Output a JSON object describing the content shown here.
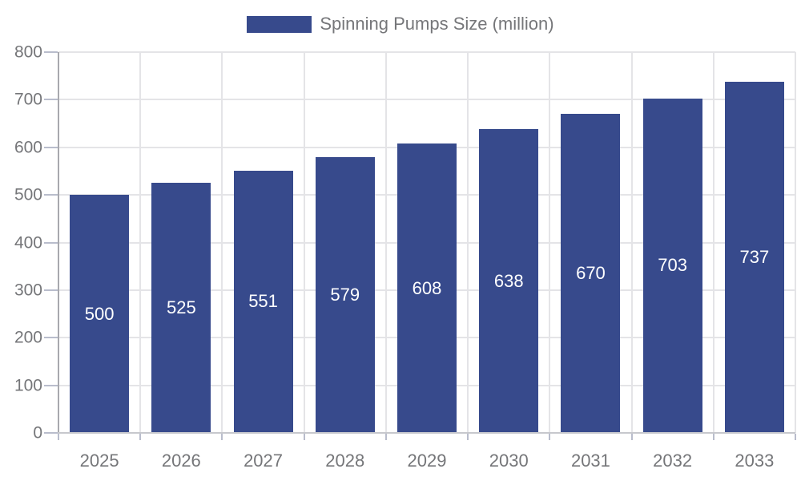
{
  "chart_data": {
    "type": "bar",
    "title": "Spinning Pumps Size (million)",
    "legend": [
      "Spinning Pumps Size (million)"
    ],
    "legend_position": "top-center",
    "categories": [
      "2025",
      "2026",
      "2027",
      "2028",
      "2029",
      "2030",
      "2031",
      "2032",
      "2033"
    ],
    "values": [
      500,
      525,
      551,
      579,
      608,
      638,
      670,
      703,
      737
    ],
    "xlabel": "",
    "ylabel": "",
    "ylim": [
      0,
      800
    ],
    "yticks": [
      0,
      100,
      200,
      300,
      400,
      500,
      600,
      700,
      800
    ],
    "grid": true,
    "data_labels": "inside-center"
  },
  "colors": {
    "bar": "#374a8c",
    "bar_label": "#ffffff",
    "axis_text": "#757679",
    "grid_line": "#e4e4e7",
    "y_axis_line": "#a8a9ae",
    "x_axis_line": "#c7c8cd",
    "tick_mark": "#b9bdcc",
    "background": "#ffffff"
  }
}
